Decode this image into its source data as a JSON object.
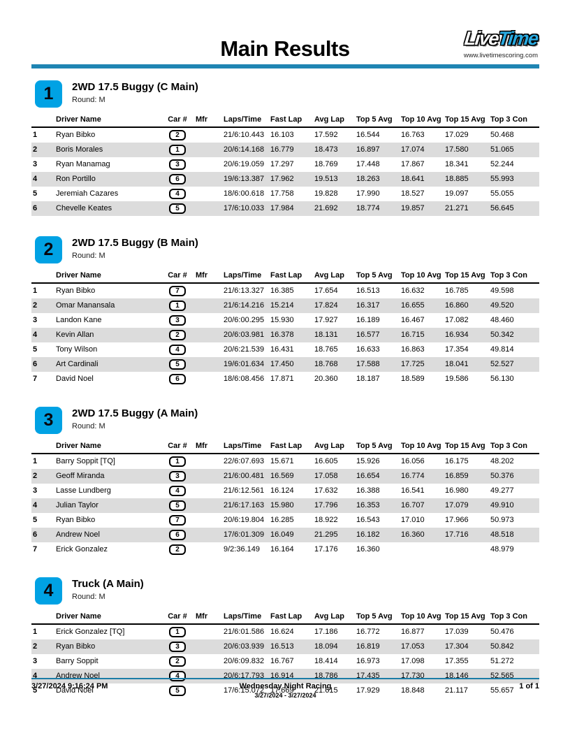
{
  "header": {
    "title": "Main Results",
    "logo": {
      "live": "Live",
      "time": "Time",
      "website": "www.livetimescoring.com"
    }
  },
  "columns": {
    "pos": "",
    "driver": "Driver Name",
    "car": "Car #",
    "mfr": "Mfr",
    "laps": "Laps/Time",
    "fast": "Fast Lap",
    "avg": "Avg Lap",
    "top5": "Top 5 Avg",
    "top10": "Top 10 Avg",
    "top15": "Top 15 Avg",
    "top3": "Top 3 Con"
  },
  "accent_colors": {
    "badge_blue": "#00a2e4",
    "divider_teal": "#1f85b3",
    "row_stripe": "#dcdcdc"
  },
  "sections": [
    {
      "number": "1",
      "title": "2WD 17.5 Buggy (C Main)",
      "round": "Round: M",
      "rows": [
        {
          "pos": "1",
          "driver": "Ryan Bibko",
          "car": "2",
          "mfr": "",
          "laps": "21/6:10.443",
          "fast": "16.103",
          "avg": "17.592",
          "top5": "16.544",
          "top10": "16.763",
          "top15": "17.029",
          "top3": "50.468"
        },
        {
          "pos": "2",
          "driver": "Boris Morales",
          "car": "1",
          "mfr": "",
          "laps": "20/6:14.168",
          "fast": "16.779",
          "avg": "18.473",
          "top5": "16.897",
          "top10": "17.074",
          "top15": "17.580",
          "top3": "51.065"
        },
        {
          "pos": "3",
          "driver": "Ryan Manamag",
          "car": "3",
          "mfr": "",
          "laps": "20/6:19.059",
          "fast": "17.297",
          "avg": "18.769",
          "top5": "17.448",
          "top10": "17.867",
          "top15": "18.341",
          "top3": "52.244"
        },
        {
          "pos": "4",
          "driver": "Ron Portillo",
          "car": "6",
          "mfr": "",
          "laps": "19/6:13.387",
          "fast": "17.962",
          "avg": "19.513",
          "top5": "18.263",
          "top10": "18.641",
          "top15": "18.885",
          "top3": "55.993"
        },
        {
          "pos": "5",
          "driver": "Jeremiah Cazares",
          "car": "4",
          "mfr": "",
          "laps": "18/6:00.618",
          "fast": "17.758",
          "avg": "19.828",
          "top5": "17.990",
          "top10": "18.527",
          "top15": "19.097",
          "top3": "55.055"
        },
        {
          "pos": "6",
          "driver": "Chevelle Keates",
          "car": "5",
          "mfr": "",
          "laps": "17/6:10.033",
          "fast": "17.984",
          "avg": "21.692",
          "top5": "18.774",
          "top10": "19.857",
          "top15": "21.271",
          "top3": "56.645"
        }
      ]
    },
    {
      "number": "2",
      "title": "2WD 17.5 Buggy (B Main)",
      "round": "Round: M",
      "rows": [
        {
          "pos": "1",
          "driver": "Ryan Bibko",
          "car": "7",
          "mfr": "",
          "laps": "21/6:13.327",
          "fast": "16.385",
          "avg": "17.654",
          "top5": "16.513",
          "top10": "16.632",
          "top15": "16.785",
          "top3": "49.598"
        },
        {
          "pos": "2",
          "driver": "Omar Manansala",
          "car": "1",
          "mfr": "",
          "laps": "21/6:14.216",
          "fast": "15.214",
          "avg": "17.824",
          "top5": "16.317",
          "top10": "16.655",
          "top15": "16.860",
          "top3": "49.520"
        },
        {
          "pos": "3",
          "driver": "Landon Kane",
          "car": "3",
          "mfr": "",
          "laps": "20/6:00.295",
          "fast": "15.930",
          "avg": "17.927",
          "top5": "16.189",
          "top10": "16.467",
          "top15": "17.082",
          "top3": "48.460"
        },
        {
          "pos": "4",
          "driver": "Kevin Allan",
          "car": "2",
          "mfr": "",
          "laps": "20/6:03.981",
          "fast": "16.378",
          "avg": "18.131",
          "top5": "16.577",
          "top10": "16.715",
          "top15": "16.934",
          "top3": "50.342"
        },
        {
          "pos": "5",
          "driver": "Tony Wilson",
          "car": "4",
          "mfr": "",
          "laps": "20/6:21.539",
          "fast": "16.431",
          "avg": "18.765",
          "top5": "16.633",
          "top10": "16.863",
          "top15": "17.354",
          "top3": "49.814"
        },
        {
          "pos": "6",
          "driver": "Art Cardinali",
          "car": "5",
          "mfr": "",
          "laps": "19/6:01.634",
          "fast": "17.450",
          "avg": "18.768",
          "top5": "17.588",
          "top10": "17.725",
          "top15": "18.041",
          "top3": "52.527"
        },
        {
          "pos": "7",
          "driver": "David Noel",
          "car": "6",
          "mfr": "",
          "laps": "18/6:08.456",
          "fast": "17.871",
          "avg": "20.360",
          "top5": "18.187",
          "top10": "18.589",
          "top15": "19.586",
          "top3": "56.130"
        }
      ]
    },
    {
      "number": "3",
      "title": "2WD 17.5 Buggy (A Main)",
      "round": "Round: M",
      "rows": [
        {
          "pos": "1",
          "driver": "Barry Soppit [TQ]",
          "car": "1",
          "mfr": "",
          "laps": "22/6:07.693",
          "fast": "15.671",
          "avg": "16.605",
          "top5": "15.926",
          "top10": "16.056",
          "top15": "16.175",
          "top3": "48.202"
        },
        {
          "pos": "2",
          "driver": "Geoff Miranda",
          "car": "3",
          "mfr": "",
          "laps": "21/6:00.481",
          "fast": "16.569",
          "avg": "17.058",
          "top5": "16.654",
          "top10": "16.774",
          "top15": "16.859",
          "top3": "50.376"
        },
        {
          "pos": "3",
          "driver": "Lasse Lundberg",
          "car": "4",
          "mfr": "",
          "laps": "21/6:12.561",
          "fast": "16.124",
          "avg": "17.632",
          "top5": "16.388",
          "top10": "16.541",
          "top15": "16.980",
          "top3": "49.277"
        },
        {
          "pos": "4",
          "driver": "Julian Taylor",
          "car": "5",
          "mfr": "",
          "laps": "21/6:17.163",
          "fast": "15.980",
          "avg": "17.796",
          "top5": "16.353",
          "top10": "16.707",
          "top15": "17.079",
          "top3": "49.910"
        },
        {
          "pos": "5",
          "driver": "Ryan Bibko",
          "car": "7",
          "mfr": "",
          "laps": "20/6:19.804",
          "fast": "16.285",
          "avg": "18.922",
          "top5": "16.543",
          "top10": "17.010",
          "top15": "17.966",
          "top3": "50.973"
        },
        {
          "pos": "6",
          "driver": "Andrew Noel",
          "car": "6",
          "mfr": "",
          "laps": "17/6:01.309",
          "fast": "16.049",
          "avg": "21.295",
          "top5": "16.182",
          "top10": "16.360",
          "top15": "17.716",
          "top3": "48.518"
        },
        {
          "pos": "7",
          "driver": "Erick Gonzalez",
          "car": "2",
          "mfr": "",
          "laps": "9/2:36.149",
          "fast": "16.164",
          "avg": "17.176",
          "top5": "16.360",
          "top10": "",
          "top15": "",
          "top3": "48.979"
        }
      ]
    },
    {
      "number": "4",
      "title": "Truck (A Main)",
      "round": "Round: M",
      "rows": [
        {
          "pos": "1",
          "driver": "Erick Gonzalez [TQ]",
          "car": "1",
          "mfr": "",
          "laps": "21/6:01.586",
          "fast": "16.624",
          "avg": "17.186",
          "top5": "16.772",
          "top10": "16.877",
          "top15": "17.039",
          "top3": "50.476"
        },
        {
          "pos": "2",
          "driver": "Ryan Bibko",
          "car": "3",
          "mfr": "",
          "laps": "20/6:03.939",
          "fast": "16.513",
          "avg": "18.094",
          "top5": "16.819",
          "top10": "17.053",
          "top15": "17.304",
          "top3": "50.842"
        },
        {
          "pos": "3",
          "driver": "Barry Soppit",
          "car": "2",
          "mfr": "",
          "laps": "20/6:09.832",
          "fast": "16.767",
          "avg": "18.414",
          "top5": "16.973",
          "top10": "17.098",
          "top15": "17.355",
          "top3": "51.272"
        },
        {
          "pos": "4",
          "driver": "Andrew Noel",
          "car": "4",
          "mfr": "",
          "laps": "20/6:17.793",
          "fast": "16.914",
          "avg": "18.786",
          "top5": "17.435",
          "top10": "17.730",
          "top15": "18.146",
          "top3": "52.565"
        },
        {
          "pos": "5",
          "driver": "David Noel",
          "car": "5",
          "mfr": "",
          "laps": "17/6:15.072",
          "fast": "17.669",
          "avg": "21.615",
          "top5": "17.929",
          "top10": "18.848",
          "top15": "21.117",
          "top3": "55.657"
        }
      ]
    }
  ],
  "footer": {
    "printed": "3/27/2024 9:16:24 PM",
    "event": "Wednesday Night Racing",
    "dates": "3/27/2024 - 3/27/2024",
    "page": "1 of 1"
  }
}
